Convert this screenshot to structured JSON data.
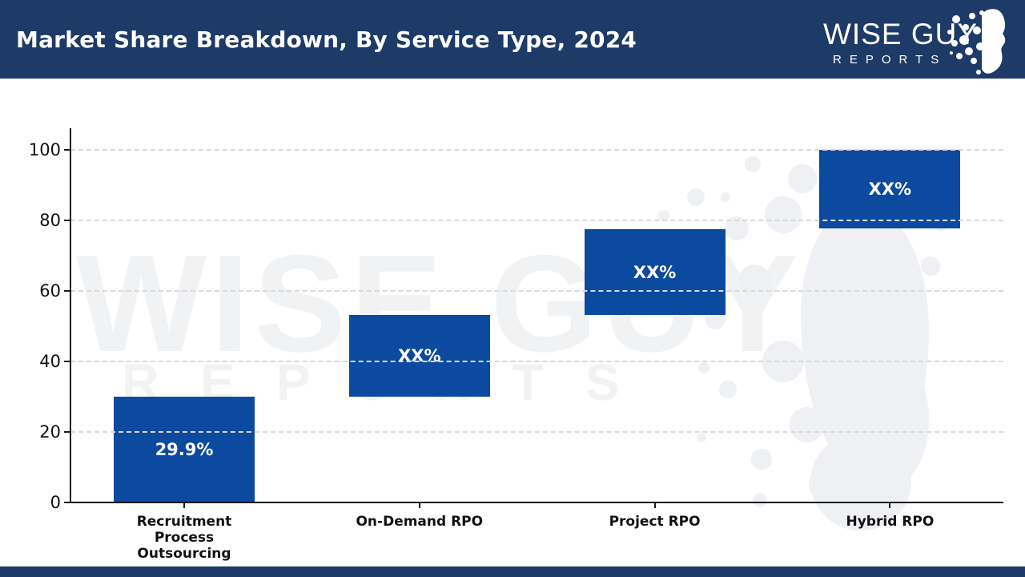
{
  "header": {
    "title": "Market Share Breakdown, By Service Type, 2024",
    "logo_text": "WISE GUY",
    "logo_subtext": "REPORTS",
    "bg_color": "#1e3a66"
  },
  "watermark": {
    "text": "WISE GUY",
    "subtext": "REPORTS"
  },
  "chart_data": {
    "type": "bar",
    "variant": "floating-stacked-waterfall",
    "title": "Market Share Breakdown, By Service Type, 2024",
    "categories": [
      "Recruitment Process Outsourcing",
      "On-Demand RPO",
      "Project RPO",
      "Hybrid RPO"
    ],
    "tick_labels": [
      "Recruitment\nProcess\nOutsourcing",
      "On-Demand RPO",
      "Project RPO",
      "Hybrid RPO"
    ],
    "segments": [
      {
        "category": "Recruitment Process Outsourcing",
        "start": 0,
        "end": 29.9,
        "label": "29.9%"
      },
      {
        "category": "On-Demand RPO",
        "start": 30,
        "end": 53.2,
        "label": "XX%"
      },
      {
        "category": "Project RPO",
        "start": 53.2,
        "end": 77.4,
        "label": "XX%"
      },
      {
        "category": "Hybrid RPO",
        "start": 77.7,
        "end": 100,
        "label": "XX%"
      }
    ],
    "y_ticks": [
      0,
      20,
      40,
      60,
      80,
      100
    ],
    "ylim": [
      0,
      106
    ],
    "xlabel": "",
    "ylabel": "",
    "grid": "horizontal-dashed",
    "legend_position": "none",
    "bar_color": "#0b4a9e",
    "axis_color": "#1a1a1a",
    "grid_color": "#d9d9d9"
  },
  "colors": {
    "header_bg": "#1e3a66",
    "footer_bg": "#1e3a66",
    "bar": "#0b4a9e",
    "watermark": "#f1f2f4"
  }
}
